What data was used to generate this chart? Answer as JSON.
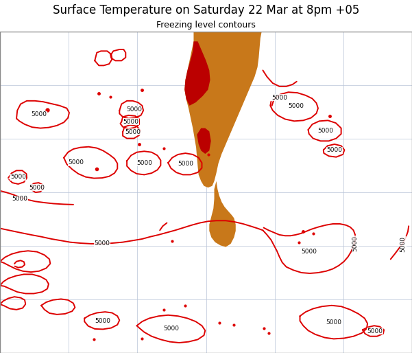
{
  "title": "Surface Temperature on Saturday 22 Mar at 8pm +05",
  "subtitle": "Freezing level contours",
  "title_fontsize": 12,
  "subtitle_fontsize": 9,
  "map_bg": "#dce2f0",
  "contour_color": "#dd0000",
  "grid_color": "#b8c4d8",
  "india_orange": "#c8781a",
  "india_red": "#bb0000",
  "figsize": [
    6.01,
    5.14
  ],
  "dpi": 100,
  "title_bg": "#ffffff"
}
